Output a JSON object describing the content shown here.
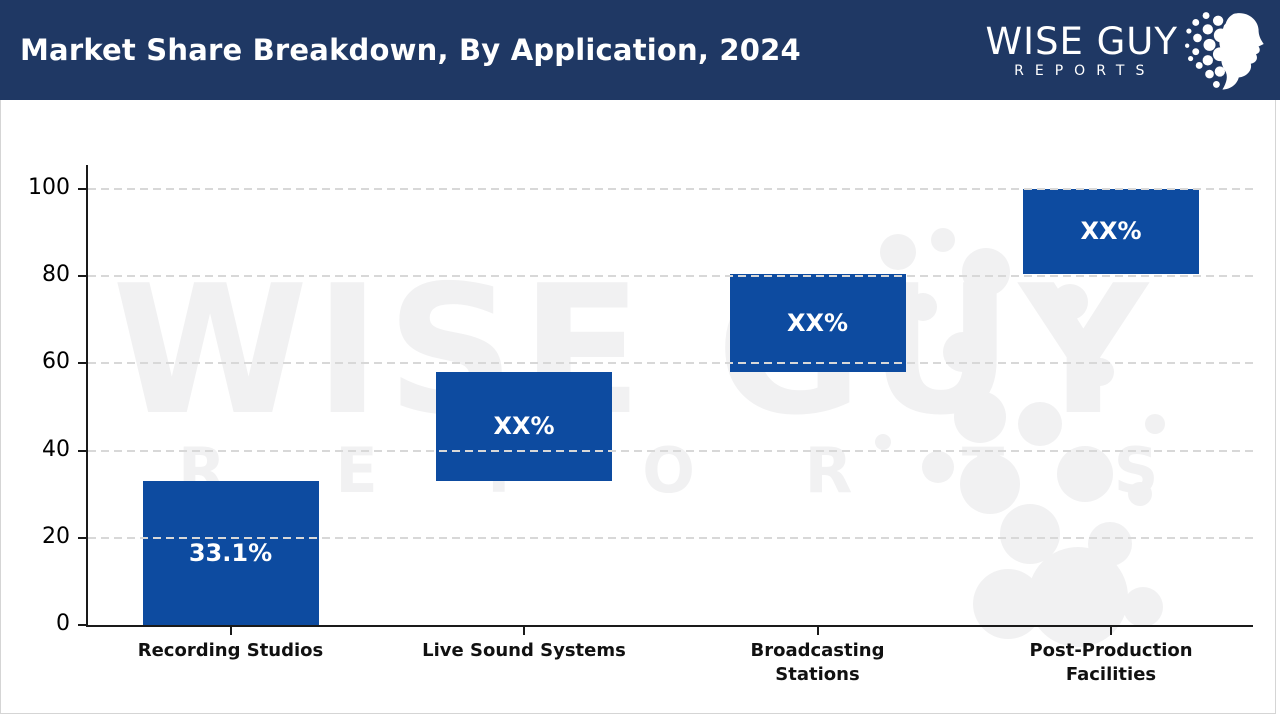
{
  "header": {
    "title": "Market Share Breakdown, By Application, 2024",
    "bg_color": "#1f3864",
    "logo": {
      "name": "WISE GUY",
      "subname": "REPORTS"
    }
  },
  "watermark": {
    "line1": "WISE GUY",
    "line2": "R E P O R T S"
  },
  "chart_data": {
    "type": "bar",
    "subtype": "waterfall",
    "title": "Market Share Breakdown, By Application, 2024",
    "categories": [
      "Recording Studios",
      "Live Sound Systems",
      "Broadcasting Stations",
      "Post-Production Facilities"
    ],
    "category_lines": [
      [
        "Recording Studios"
      ],
      [
        "Live Sound Systems"
      ],
      [
        "Broadcasting",
        "Stations"
      ],
      [
        "Post-Production",
        "Facilities"
      ]
    ],
    "segments": [
      {
        "start": 0,
        "end": 33.1,
        "label": "33.1%"
      },
      {
        "start": 33.1,
        "end": 58.0,
        "label": "XX%"
      },
      {
        "start": 58.0,
        "end": 80.6,
        "label": "XX%"
      },
      {
        "start": 80.6,
        "end": 100.0,
        "label": "XX%"
      }
    ],
    "ylim": [
      0,
      100
    ],
    "yticks": [
      0,
      20,
      40,
      60,
      80,
      100
    ],
    "grid": true,
    "grid_style": "dashed",
    "legend": "none",
    "bar_color": "#0d4ba0",
    "bar_label_color": "#ffffff",
    "axis_color": "#1a1a1a",
    "gridline_color": "#d8d8d8"
  }
}
